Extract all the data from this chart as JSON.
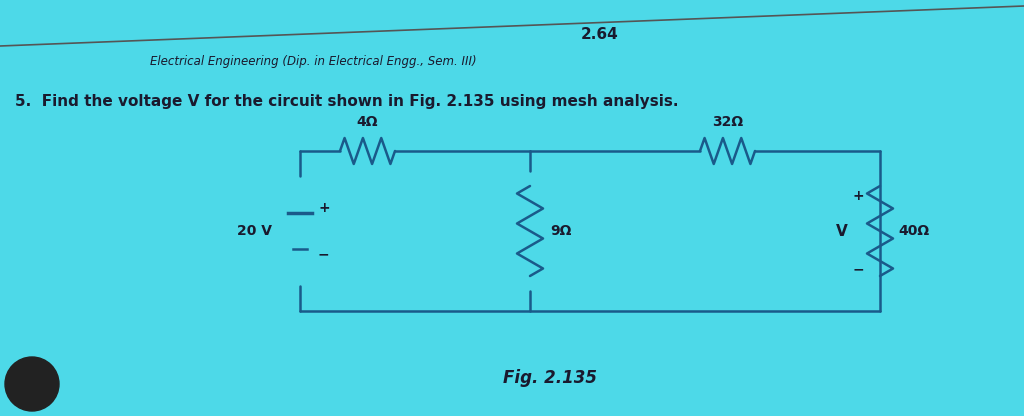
{
  "bg_color": "#4dd9e8",
  "bg_color2": "#3bbccc",
  "title_text": "2.64",
  "subtitle_text": "Electrical Engineering (Dip. in Electrical Engg., Sem. III)",
  "problem_text": "5.  Find the voltage V for the circuit shown in Fig. 2.135 using mesh analysis.",
  "fig_label": "Fig. 2.135",
  "line_color": "#1a5a8a",
  "text_color": "#1a1a2e",
  "resistor_labels": [
    "4Ω",
    "32Ω",
    "9Ω",
    "40Ω"
  ],
  "source_label": "20 V",
  "v_label": "V"
}
